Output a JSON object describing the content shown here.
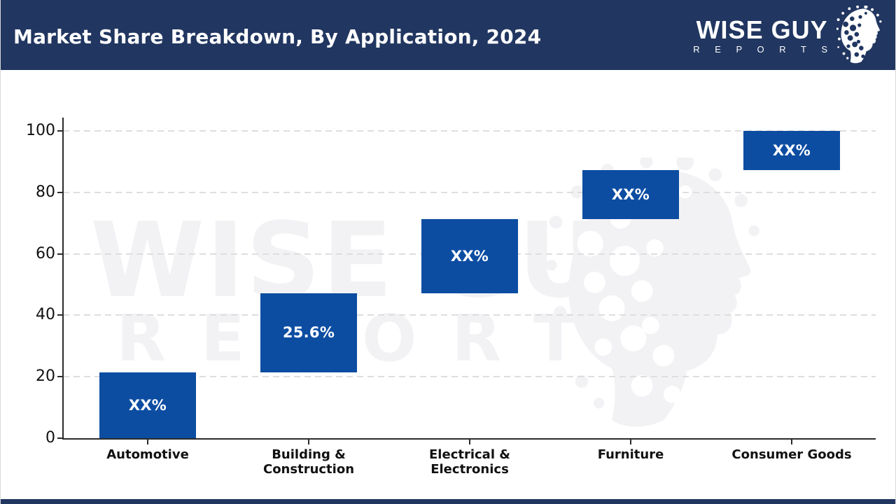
{
  "header": {
    "title": "Market Share Breakdown, By Application, 2024",
    "bg_color": "#213660",
    "logo": {
      "line1": "WISE GUY",
      "line2": "R E P O R T S"
    }
  },
  "watermark": {
    "line1": "WISE GUY",
    "line2": "REPORTS"
  },
  "footer": {
    "bg_color": "#213660"
  },
  "chart_data": {
    "type": "bar",
    "variant": "floating-waterfall",
    "title": "Market Share Breakdown, By Application, 2024",
    "xlabel": "",
    "ylabel": "",
    "ylim": [
      0,
      105
    ],
    "yticks": [
      0,
      20,
      40,
      60,
      80,
      100
    ],
    "grid": "horizontal-dashed",
    "bar_color": "#0c4da2",
    "label_color": "#ffffff",
    "segments": [
      {
        "category_lines": [
          "Automotive"
        ],
        "start": 0,
        "end": 21.5,
        "height": 21.5,
        "label": "XX%"
      },
      {
        "category_lines": [
          "Building &",
          "Construction"
        ],
        "start": 21.5,
        "end": 47.1,
        "height": 25.6,
        "label": "25.6%"
      },
      {
        "category_lines": [
          "Electrical &",
          "Electronics"
        ],
        "start": 47.1,
        "end": 71.2,
        "height": 24.1,
        "label": "XX%"
      },
      {
        "category_lines": [
          "Furniture"
        ],
        "start": 71.2,
        "end": 87.3,
        "height": 16.1,
        "label": "XX%"
      },
      {
        "category_lines": [
          "Consumer Goods"
        ],
        "start": 87.3,
        "end": 100,
        "height": 12.7,
        "label": "XX%"
      }
    ]
  }
}
